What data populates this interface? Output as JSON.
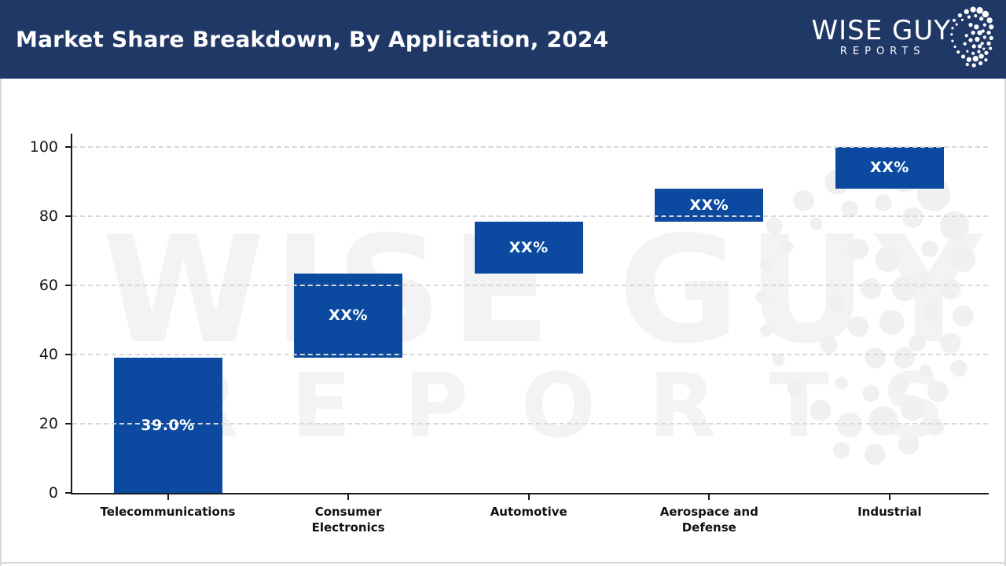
{
  "header": {
    "title": "Market Share Breakdown, By Application, 2024",
    "logo": {
      "line1": "WISE GUY",
      "line2": "REPORTS"
    }
  },
  "watermark": {
    "line1": "WISE GUY",
    "line2": "R E P O R T S"
  },
  "chart_data": {
    "type": "bar",
    "subtype": "waterfall-floating-bars",
    "title": "Market Share Breakdown, By Application, 2024",
    "xlabel": "",
    "ylabel": "",
    "unit": "%",
    "ylim": [
      0,
      100
    ],
    "yticks": [
      0,
      20,
      40,
      60,
      80,
      100
    ],
    "grid": "horizontal dashed, drawn over bars",
    "legend": "none",
    "categories": [
      "Telecommunications",
      "Consumer Electronics",
      "Automotive",
      "Aerospace and Defense",
      "Industrial"
    ],
    "bars": [
      {
        "category": "Telecommunications",
        "start": 0,
        "end": 39,
        "label": "39.0%"
      },
      {
        "category": "Consumer Electronics",
        "start": 39,
        "end": 63.5,
        "label": "XX%"
      },
      {
        "category": "Automotive",
        "start": 63.5,
        "end": 78.5,
        "label": "XX%"
      },
      {
        "category": "Aerospace and Defense",
        "start": 78.5,
        "end": 88,
        "label": "XX%"
      },
      {
        "category": "Industrial",
        "start": 88,
        "end": 100,
        "label": "XX%"
      }
    ]
  },
  "colors": {
    "header_bg": "#203866",
    "bar": "#0b4aa0",
    "grid": "#d8d8d8",
    "axis": "#1a1a1a",
    "watermark": "#f3f3f3",
    "title_text": "#ffffff",
    "bar_label_text": "#ffffff"
  }
}
